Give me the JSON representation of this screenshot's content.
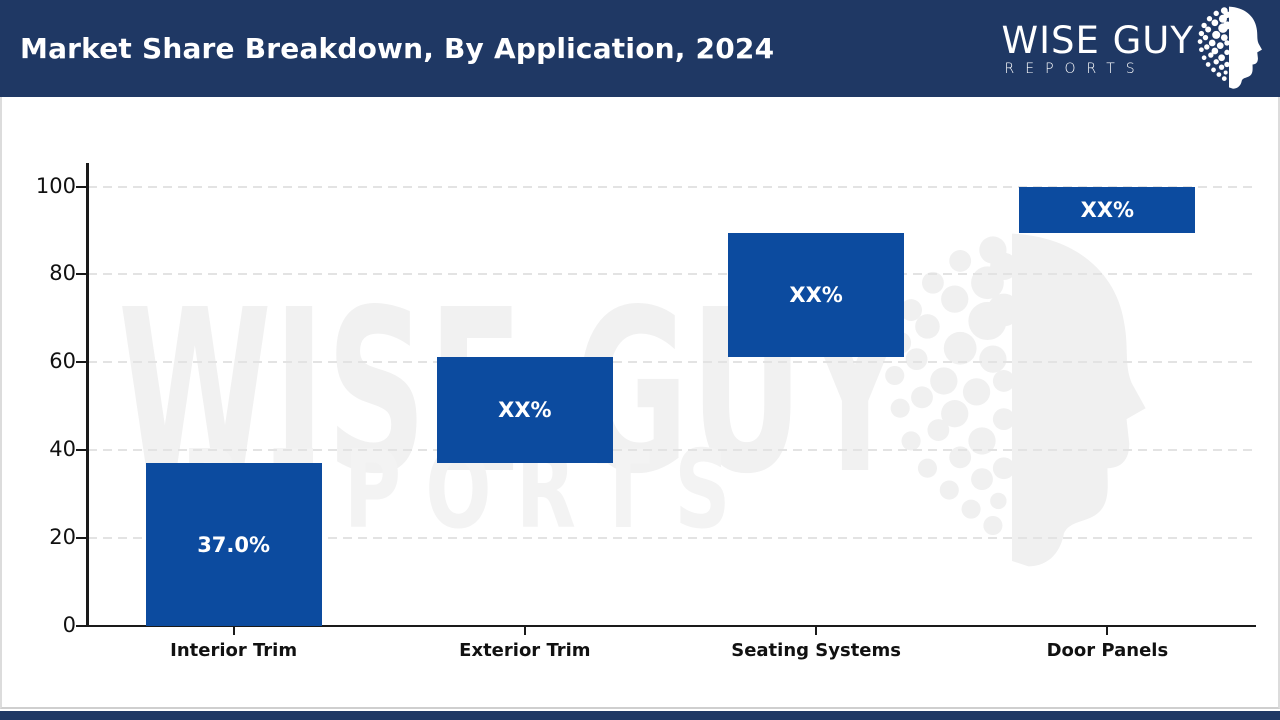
{
  "header": {
    "title": "Market Share Breakdown, By Application, 2024",
    "logo": {
      "line1": "WISE GUY",
      "line2": "REPORTS"
    }
  },
  "watermark": {
    "line1": "WISE GUY",
    "line2": "REPORTS"
  },
  "chart_data": {
    "type": "bar",
    "subtype": "floating-waterfall-segments",
    "title": "Market Share Breakdown, By Application, 2024",
    "categories": [
      "Interior Trim",
      "Exterior Trim",
      "Seating Systems",
      "Door Panels"
    ],
    "segments": [
      {
        "start": 0,
        "end": 37.0
      },
      {
        "start": 37.0,
        "end": 61.3
      },
      {
        "start": 61.3,
        "end": 89.4
      },
      {
        "start": 89.4,
        "end": 100.0
      }
    ],
    "bar_labels": [
      "37.0%",
      "XX%",
      "XX%",
      "XX%"
    ],
    "yticks": [
      "0",
      "20",
      "40",
      "60",
      "80",
      "100"
    ],
    "ylim": [
      0,
      105
    ],
    "grid": "horizontal-dashed",
    "legend": "none",
    "colors": {
      "bar": "#0c4b9f",
      "header_bg": "#1f3864",
      "grid": "#e3e3e3",
      "bar_label": "#ffffff",
      "axis": "#1a1a1a"
    }
  }
}
